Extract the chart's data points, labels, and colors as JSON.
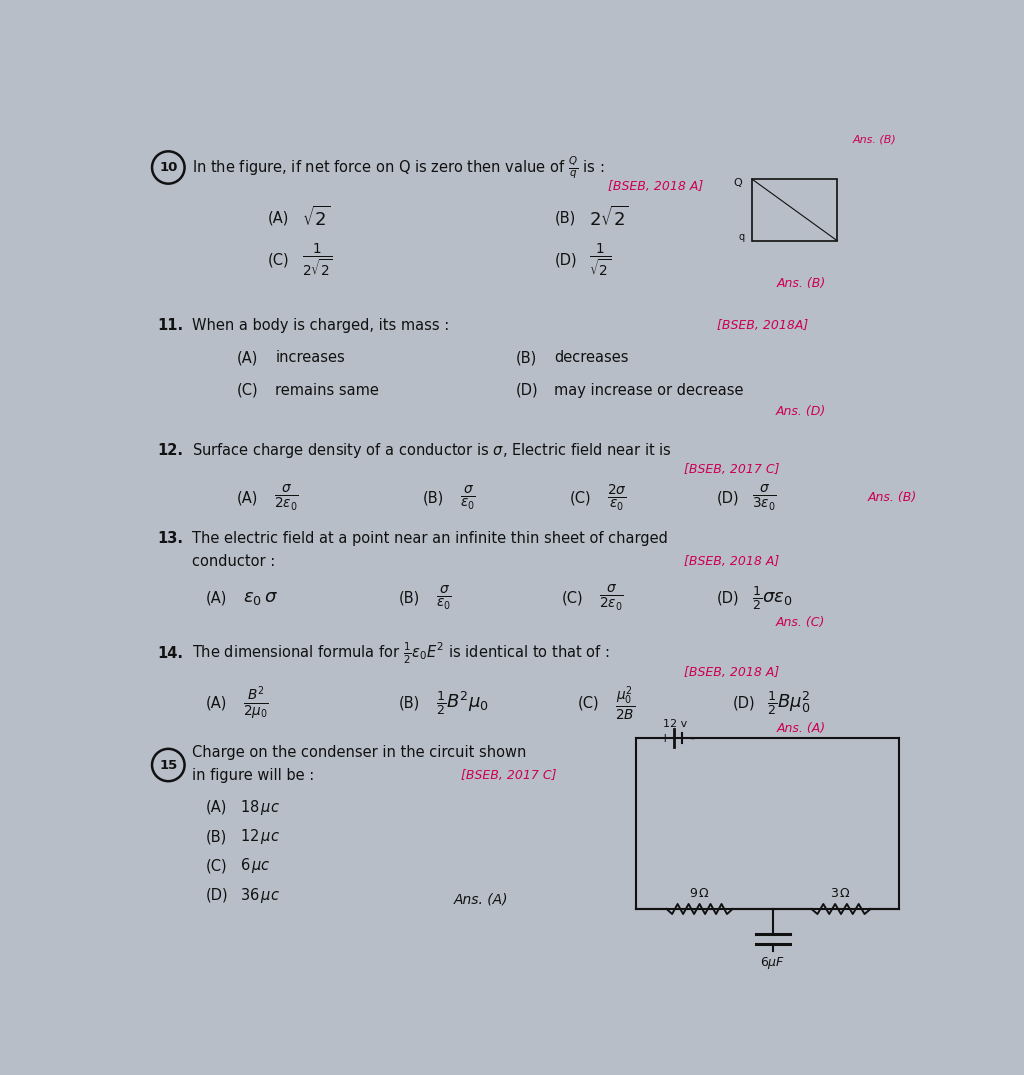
{
  "bg_color": "#b8bec8",
  "text_color": "#111111",
  "magenta_color": "#cc0055",
  "q10_text": "In the figure, if net force on Q is zero then value of $\\frac{Q}{q}$ is :",
  "q10_src": "[BSEB, 2018 A]",
  "q10_opts": [
    "$\\sqrt{2}$",
    "$2\\sqrt{2}$",
    "$\\frac{1}{2\\sqrt{2}}$",
    "$\\frac{1}{\\sqrt{2}}$"
  ],
  "q10_ans": "Ans. (B)",
  "q11_text": "When a body is charged, its mass :",
  "q11_src": "[BSEB, 2018A]",
  "q11_opts": [
    "increases",
    "decreases",
    "remains same",
    "may increase or decrease"
  ],
  "q11_ans": "Ans. (D)",
  "q12_text": "Surface charge density of a conductor is $\\sigma$, Electric field near it is",
  "q12_src": "[BSEB, 2017 C]",
  "q12_opts": [
    "$\\frac{\\sigma}{2\\epsilon_0}$",
    "$\\frac{\\sigma}{\\epsilon_0}$",
    "$\\frac{2\\sigma}{\\epsilon_0}$",
    "$\\frac{\\sigma}{3\\epsilon_0}$"
  ],
  "q12_ans": "Ans. (B)",
  "q13_text1": "The electric field at a point near an infinite thin sheet of charged",
  "q13_text2": "conductor :",
  "q13_src": "[BSEB, 2018 A]",
  "q13_opts": [
    "$\\epsilon_0\\,\\sigma$",
    "$\\frac{\\sigma}{\\epsilon_0}$",
    "$\\frac{\\sigma}{2\\epsilon_0}$",
    "$\\frac{1}{2}\\sigma\\epsilon_0$"
  ],
  "q13_ans": "Ans. (C)",
  "q14_text": "The dimensional formula for $\\frac{1}{2}\\epsilon_0 E^2$ is identical to that of :",
  "q14_src": "[BSEB, 2018 A]",
  "q14_opts": [
    "$\\frac{B^2}{2\\mu_0}$",
    "$\\frac{1}{2}B^2\\mu_0$",
    "$\\frac{\\mu_0^2}{2B}$",
    "$\\frac{1}{2}B\\mu_0^2$"
  ],
  "q14_ans": "Ans. (A)",
  "q15_text1": "Charge on the condenser in the circuit shown",
  "q15_text2": "in figure will be :",
  "q15_src": "[BSEB, 2017 C]",
  "q15_opts": [
    "$18\\,\\mu c$",
    "$12\\,\\mu c$",
    "$6\\,\\mu c$",
    "$36\\,\\mu c$"
  ],
  "q15_ans": "Ans. (A)"
}
